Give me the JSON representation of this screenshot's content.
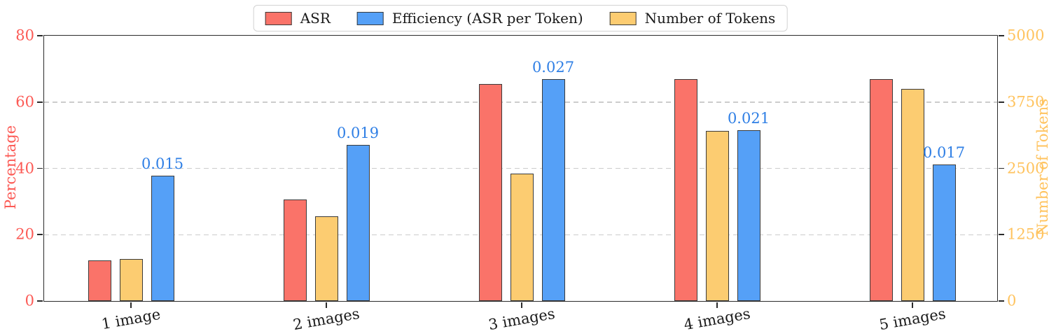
{
  "chart_data": {
    "type": "bar",
    "title": "",
    "categories": [
      "1 image",
      "2 images",
      "3 images",
      "4 images",
      "5 images"
    ],
    "series": [
      {
        "name": "ASR",
        "axis": "left",
        "color": "#FA7369",
        "values": [
          12.3,
          30.7,
          65.5,
          67.0,
          67.0
        ]
      },
      {
        "name": "Number of Tokens",
        "axis": "right",
        "color": "#FCCC71",
        "values": [
          790,
          1600,
          2400,
          3200,
          4000
        ]
      },
      {
        "name": "Efficiency (ASR per Token)",
        "axis": "left-scaled",
        "color": "#55A0F7",
        "scale_factor": 2500,
        "values": [
          0.0151,
          0.0188,
          0.0268,
          0.0206,
          0.0165
        ],
        "labels": [
          "0.015",
          "0.019",
          "0.027",
          "0.021",
          "0.017"
        ]
      }
    ],
    "left_axis": {
      "label": "Percentage",
      "color": "#FC5A55",
      "ticks": [
        0,
        20,
        40,
        60,
        80
      ],
      "lim": [
        0,
        80
      ]
    },
    "right_axis": {
      "label": "Number of Tokens",
      "color": "#FFC35E",
      "ticks": [
        0,
        1250,
        2500,
        3750,
        5000
      ],
      "lim": [
        0,
        5000
      ]
    },
    "grid": {
      "on": true,
      "values": [
        20,
        40,
        60
      ],
      "style": "dashed"
    },
    "legend": {
      "position": "top-center",
      "items": [
        {
          "label": "ASR",
          "color": "#FA7369"
        },
        {
          "label": "Efficiency (ASR per Token)",
          "color": "#55A0F7"
        },
        {
          "label": "Number of Tokens",
          "color": "#FCCC71"
        }
      ]
    },
    "value_label_color": "#2F7FE5",
    "bar_edge_color": "#3B3B3B"
  }
}
